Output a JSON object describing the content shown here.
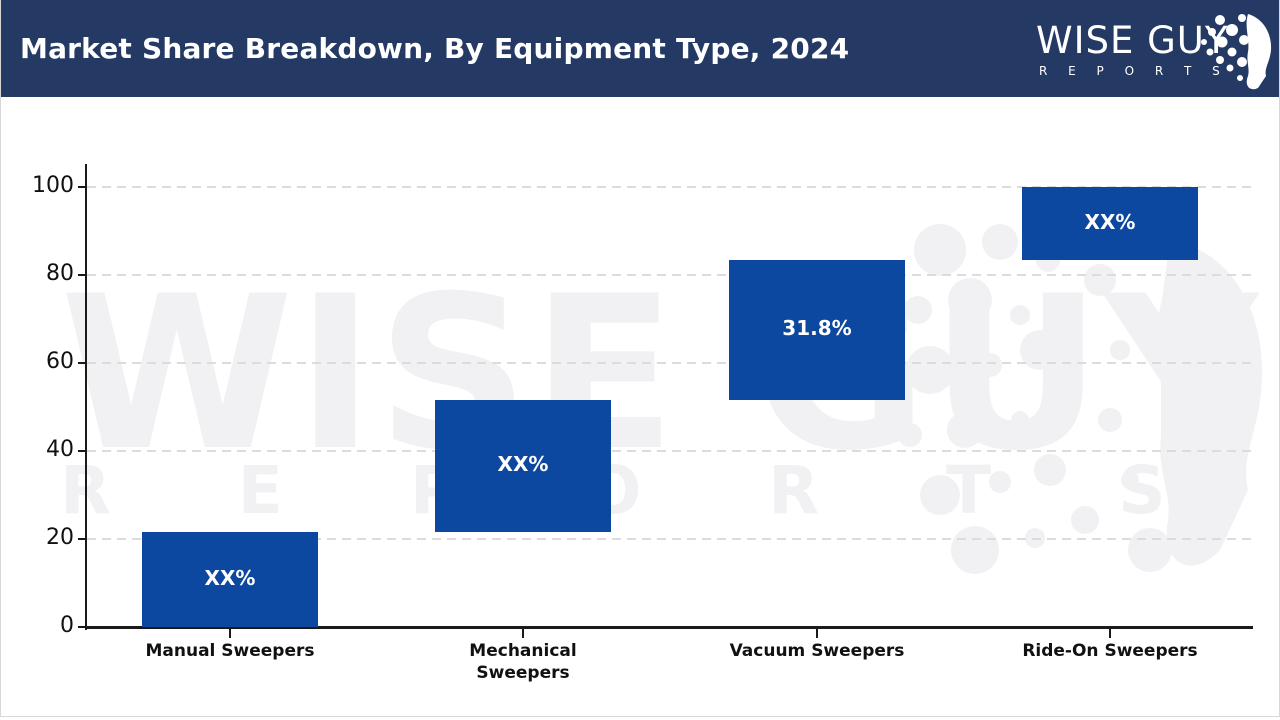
{
  "header": {
    "title": "Market Share Breakdown, By Equipment Type, 2024",
    "logo": {
      "line1": "WISE GUY",
      "line2": "R E P O R T S"
    }
  },
  "watermark": {
    "line1": "WISE GUY",
    "line2": "R E P O R T S"
  },
  "colors": {
    "header_bg": "#243A64",
    "bar": "#0C47A0",
    "grid": "#DCDCDC",
    "axis": "#1A1A1A",
    "bar_label": "#FFFFFF",
    "watermark": "#F1F1F4",
    "border": "#D7D7D7"
  },
  "chart_data": {
    "type": "bar",
    "subtype": "waterfall",
    "title": "Market Share Breakdown, By Equipment Type, 2024",
    "categories": [
      "Manual Sweepers",
      "Mechanical\nSweepers",
      "Vacuum Sweepers",
      "Ride-On Sweepers"
    ],
    "segments": [
      {
        "category": "Manual Sweepers",
        "start": 0,
        "end": 21.5,
        "label": "XX%"
      },
      {
        "category": "Mechanical Sweepers",
        "start": 21.5,
        "end": 51.5,
        "label": "XX%"
      },
      {
        "category": "Vacuum Sweepers",
        "start": 51.5,
        "end": 83.3,
        "label": "31.8%"
      },
      {
        "category": "Ride-On Sweepers",
        "start": 83.3,
        "end": 100,
        "label": "XX%"
      }
    ],
    "yticks": [
      0,
      20,
      40,
      60,
      80,
      100
    ],
    "ylim": [
      0,
      105
    ],
    "xlabel": "",
    "ylabel": "",
    "grid": "horizontal-dashed",
    "legend": "none",
    "bar_color": "#0C47A0"
  }
}
